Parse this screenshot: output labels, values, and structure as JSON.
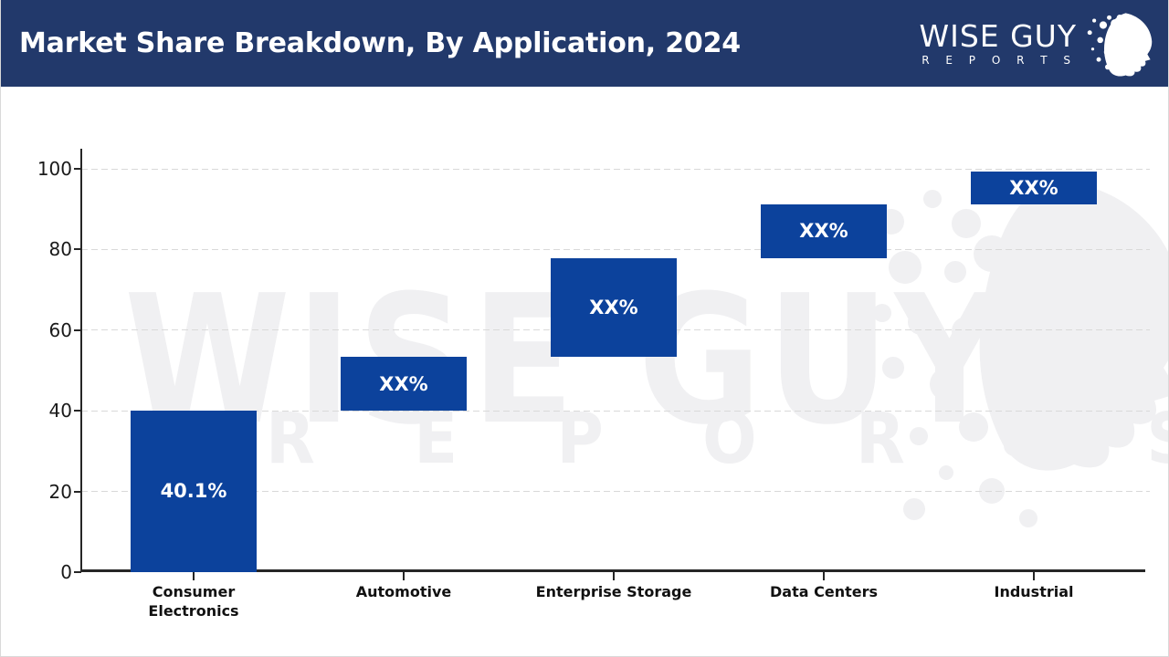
{
  "header": {
    "title": "Market Share Breakdown, By Application, 2024",
    "logo": {
      "name_top": "WISE GUY",
      "name_bottom": "R E P O R T S"
    }
  },
  "watermark": {
    "text_top": "WISE GUY",
    "text_bottom": "R E P O R T S"
  },
  "chart_data": {
    "type": "bar",
    "subtype": "waterfall",
    "title": "Market Share Breakdown, By Application, 2024",
    "categories": [
      "Consumer\nElectronics",
      "Automotive",
      "Enterprise Storage",
      "Data Centers",
      "Industrial"
    ],
    "segments": [
      {
        "start": 0,
        "end": 40.1,
        "label": "40.1%"
      },
      {
        "start": 40.1,
        "end": 53.3,
        "label": "XX%"
      },
      {
        "start": 53.3,
        "end": 77.9,
        "label": "XX%"
      },
      {
        "start": 77.9,
        "end": 91.2,
        "label": "XX%"
      },
      {
        "start": 91.2,
        "end": 99.4,
        "label": "XX%"
      }
    ],
    "xlabel": "",
    "ylabel": "",
    "yticks": [
      0,
      20,
      40,
      60,
      80,
      100
    ],
    "ylim": [
      0,
      105
    ],
    "grid": "horizontal-dashed",
    "legend": null
  },
  "colors": {
    "header_bg": "#22396B",
    "bar": "#0C429C",
    "bar_label": "#FFFFFF",
    "axis": "#262626",
    "grid": "#D9D9D9",
    "text": "#1A1A1A",
    "watermark": "#F0F0F2",
    "border": "#D9D9D9"
  }
}
